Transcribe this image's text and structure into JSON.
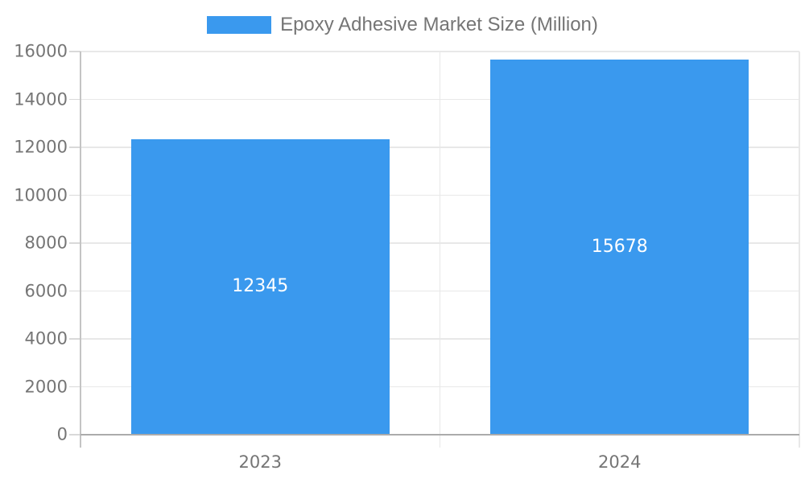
{
  "chart_data": {
    "type": "bar",
    "title": "Epoxy Adhesive Market Size (Million)",
    "categories": [
      "2023",
      "2024"
    ],
    "series": [
      {
        "name": "Epoxy Adhesive Market Size (Million)",
        "values": [
          12345,
          15678
        ]
      }
    ],
    "data_labels": [
      "12345",
      "15678"
    ],
    "xlabel": "",
    "ylabel": "",
    "ylim": [
      0,
      16000
    ],
    "ytick_step": 2000,
    "yticks": [
      "0",
      "2000",
      "4000",
      "6000",
      "8000",
      "10000",
      "12000",
      "14000",
      "16000"
    ],
    "grid": true,
    "legend_position": "top",
    "colors": {
      "bar": "#3A99EE",
      "bar_label": "#ffffff",
      "axis_text": "#757575",
      "grid_line": "#e8e8e8",
      "y_axis_line": "#c4c4c4",
      "x_axis_line": "#ababab",
      "tick_line": "#d9d9d9",
      "background": "#ffffff"
    }
  }
}
